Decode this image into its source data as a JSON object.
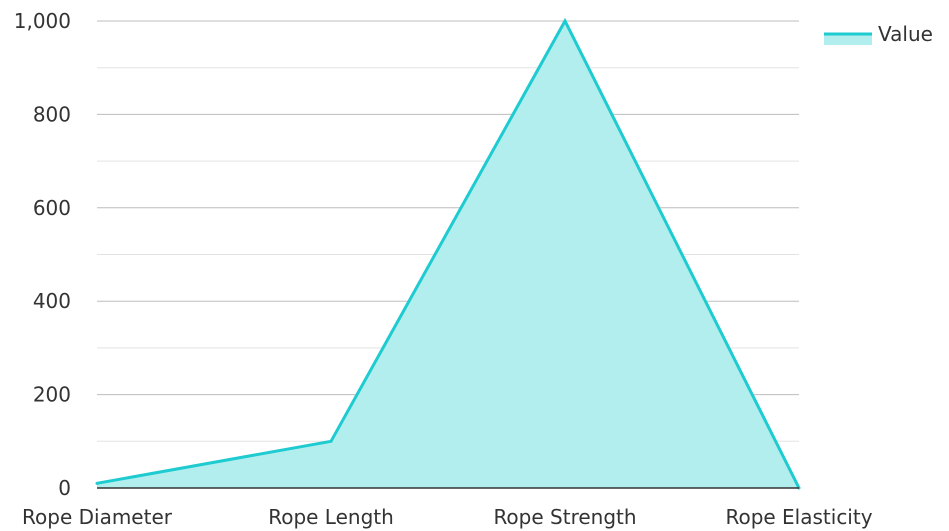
{
  "chart_data": {
    "type": "area",
    "categories": [
      "Rope Diameter",
      "Rope Length",
      "Rope Strength",
      "Rope Elasticity"
    ],
    "series": [
      {
        "name": "Value",
        "values": [
          10,
          100,
          1000,
          0
        ]
      }
    ],
    "ylim": [
      0,
      1000
    ],
    "yticks": [
      0,
      200,
      400,
      600,
      800,
      1000
    ],
    "ytick_labels": [
      "0",
      "200",
      "400",
      "600",
      "800",
      "1,000"
    ],
    "grid": true,
    "legend": {
      "placement": "top-right",
      "label": "Value"
    },
    "colors": {
      "line": "#1ecbd0",
      "fill": "#b2eeee",
      "grid_major": "#bdbdbd",
      "grid_minor": "#e3e3e3",
      "axis": "#333333"
    }
  }
}
